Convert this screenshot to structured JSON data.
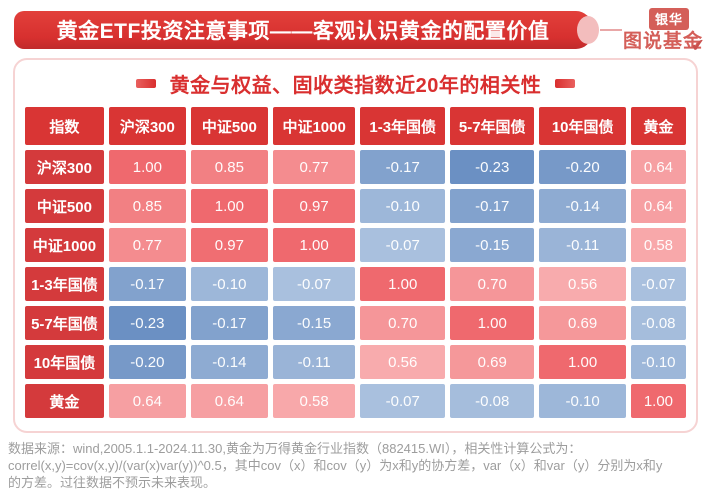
{
  "banner": {
    "title": "黄金ETF投资注意事项——客观认识黄金的配置价值"
  },
  "logo": {
    "brand": "银华",
    "series": "图说基金",
    "check": "✔"
  },
  "subtitle": "黄金与权益、固收类指数近20年的相关性",
  "chart_data": {
    "type": "heatmap",
    "title": "黄金与权益、固收类指数近20年的相关性",
    "corner_label": "指数",
    "columns": [
      "沪深300",
      "中证500",
      "中证1000",
      "1-3年国债",
      "5-7年国债",
      "10年国债",
      "黄金"
    ],
    "rows": [
      "沪深300",
      "中证500",
      "中证1000",
      "1-3年国债",
      "5-7年国债",
      "10年国债",
      "黄金"
    ],
    "values": [
      [
        1.0,
        0.85,
        0.77,
        -0.17,
        -0.23,
        -0.2,
        0.64
      ],
      [
        0.85,
        1.0,
        0.97,
        -0.1,
        -0.17,
        -0.14,
        0.64
      ],
      [
        0.77,
        0.97,
        1.0,
        -0.07,
        -0.15,
        -0.11,
        0.58
      ],
      [
        -0.17,
        -0.1,
        -0.07,
        1.0,
        0.7,
        0.56,
        -0.07
      ],
      [
        -0.23,
        -0.17,
        -0.15,
        0.7,
        1.0,
        0.69,
        -0.08
      ],
      [
        -0.2,
        -0.14,
        -0.11,
        0.56,
        0.69,
        1.0,
        -0.1
      ],
      [
        0.64,
        0.64,
        0.58,
        -0.07,
        -0.08,
        -0.1,
        1.0
      ]
    ],
    "value_range": [
      -0.23,
      1.0
    ],
    "decimals": 2,
    "colormap": {
      "positive": {
        "v0": 0.56,
        "c0": "#f8abad",
        "v1": 1.0,
        "c1": "#ef696e"
      },
      "negative": {
        "v0": -0.07,
        "c0": "#a9c0de",
        "v1": -0.23,
        "c1": "#6b90c3"
      }
    }
  },
  "footer": {
    "lines": [
      "数据来源：wind,2005.1.1-2024.11.30,黄金为万得黄金行业指数（882415.WI），相关性计算公式为：",
      "correl(x,y)=cov(x,y)/(var(x)var(y))^0.5，其中cov（x）和cov（y）为x和y的协方差，var（x）和var（y）分别为x和y",
      "的方差。过往数据不预示未来表现。"
    ]
  },
  "colors": {
    "banner_red": "#d7302f",
    "banner_red_light": "#e2403b",
    "accent_red": "#d92f2f",
    "header_red": "#d93534",
    "label_red": "#d43a3c",
    "card_border": "#f6d3d3",
    "footer_gray": "#9d9d9d",
    "logo_red": "#cf4a43"
  }
}
